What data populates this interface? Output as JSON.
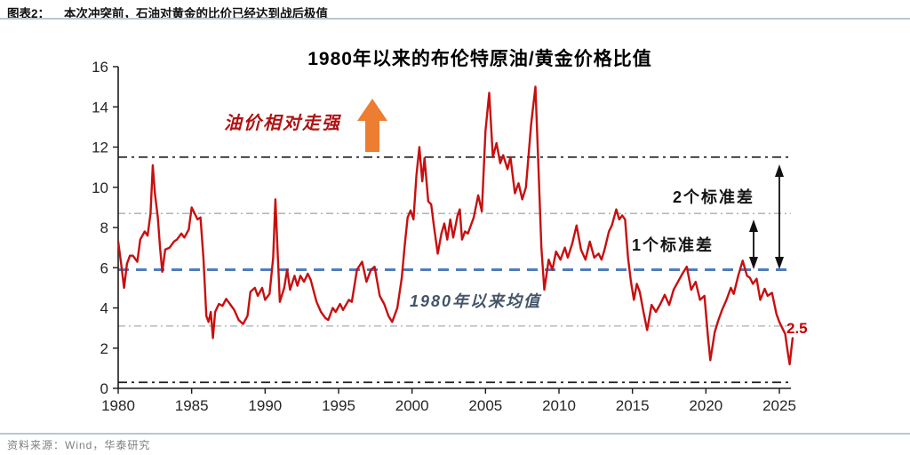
{
  "header": {
    "tag": "图表2：",
    "title": "本次冲突前，石油对黄金的比价已经达到战后极值"
  },
  "footer": {
    "source": "资料来源：Wind，华泰研究"
  },
  "chart_data": {
    "type": "line",
    "title": "1980年以来的布伦特原油/黄金价格比值",
    "series_name": "布伦特原油/黄金价格比值",
    "line_color": "#c80f0f",
    "xlim": [
      1980,
      2026.3
    ],
    "ylim": [
      0,
      16
    ],
    "x_ticks": [
      1980,
      1985,
      1990,
      1995,
      2000,
      2005,
      2010,
      2015,
      2020,
      2025
    ],
    "y_ticks": [
      0,
      2,
      4,
      6,
      8,
      10,
      12,
      14,
      16
    ],
    "grid": false,
    "legend": "none",
    "reference_lines": [
      {
        "name": "mean_plus_2std",
        "value": 11.5,
        "color": "#1f1f1f",
        "style": "dashdot_major"
      },
      {
        "name": "mean_plus_1std",
        "value": 8.7,
        "color": "#a6acb5",
        "style": "dashdot_minor"
      },
      {
        "name": "mean_since_1980",
        "value": 5.9,
        "color": "#4f7cbe",
        "style": "dashed"
      },
      {
        "name": "mean_minus_1std",
        "value": 3.1,
        "color": "#a6acb5",
        "style": "dashdot_minor"
      },
      {
        "name": "mean_minus_2std",
        "value": 0.3,
        "color": "#1f1f1f",
        "style": "dashdot_major"
      }
    ],
    "annotations": {
      "strength": "油价相对走强",
      "two_std": "2个标准差",
      "one_std": "1个标准差",
      "mean": "1980年以来均值",
      "last_value": "2.5"
    },
    "accent_colors": {
      "arrow_orange": "#ed7d31",
      "annotation_red": "#b01212",
      "mean_text_blue": "#44546a"
    },
    "points": [
      [
        1980.0,
        7.3
      ],
      [
        1980.2,
        6.2
      ],
      [
        1980.4,
        5.0
      ],
      [
        1980.6,
        6.2
      ],
      [
        1980.8,
        6.6
      ],
      [
        1981.0,
        6.6
      ],
      [
        1981.3,
        6.3
      ],
      [
        1981.5,
        7.4
      ],
      [
        1981.8,
        7.8
      ],
      [
        1982.0,
        7.6
      ],
      [
        1982.2,
        8.7
      ],
      [
        1982.35,
        11.1
      ],
      [
        1982.5,
        9.7
      ],
      [
        1982.7,
        8.5
      ],
      [
        1982.85,
        7.0
      ],
      [
        1983.0,
        5.8
      ],
      [
        1983.2,
        6.9
      ],
      [
        1983.5,
        7.0
      ],
      [
        1983.8,
        7.3
      ],
      [
        1984.0,
        7.4
      ],
      [
        1984.3,
        7.7
      ],
      [
        1984.5,
        7.5
      ],
      [
        1984.8,
        7.9
      ],
      [
        1985.0,
        9.0
      ],
      [
        1985.2,
        8.7
      ],
      [
        1985.4,
        8.4
      ],
      [
        1985.6,
        8.5
      ],
      [
        1985.8,
        6.5
      ],
      [
        1986.0,
        3.6
      ],
      [
        1986.15,
        3.3
      ],
      [
        1986.3,
        3.8
      ],
      [
        1986.45,
        2.5
      ],
      [
        1986.6,
        3.8
      ],
      [
        1986.85,
        4.2
      ],
      [
        1987.1,
        4.1
      ],
      [
        1987.35,
        4.45
      ],
      [
        1987.6,
        4.2
      ],
      [
        1987.9,
        3.9
      ],
      [
        1988.2,
        3.4
      ],
      [
        1988.5,
        3.2
      ],
      [
        1988.8,
        3.6
      ],
      [
        1989.0,
        4.8
      ],
      [
        1989.3,
        5.0
      ],
      [
        1989.5,
        4.6
      ],
      [
        1989.8,
        5.0
      ],
      [
        1990.0,
        4.4
      ],
      [
        1990.3,
        4.7
      ],
      [
        1990.55,
        6.5
      ],
      [
        1990.7,
        9.4
      ],
      [
        1990.85,
        6.8
      ],
      [
        1991.0,
        4.3
      ],
      [
        1991.3,
        5.0
      ],
      [
        1991.5,
        5.9
      ],
      [
        1991.7,
        4.9
      ],
      [
        1992.0,
        5.6
      ],
      [
        1992.2,
        5.1
      ],
      [
        1992.4,
        5.6
      ],
      [
        1992.65,
        5.3
      ],
      [
        1992.9,
        5.7
      ],
      [
        1993.1,
        5.4
      ],
      [
        1993.5,
        4.3
      ],
      [
        1993.8,
        3.8
      ],
      [
        1994.1,
        3.5
      ],
      [
        1994.3,
        3.4
      ],
      [
        1994.6,
        4.0
      ],
      [
        1994.8,
        3.8
      ],
      [
        1995.1,
        4.2
      ],
      [
        1995.3,
        3.9
      ],
      [
        1995.7,
        4.4
      ],
      [
        1995.9,
        4.3
      ],
      [
        1996.25,
        5.9
      ],
      [
        1996.6,
        6.3
      ],
      [
        1996.9,
        5.3
      ],
      [
        1997.2,
        5.9
      ],
      [
        1997.45,
        6.05
      ],
      [
        1997.8,
        4.6
      ],
      [
        1998.1,
        4.2
      ],
      [
        1998.4,
        3.6
      ],
      [
        1998.65,
        3.3
      ],
      [
        1999.0,
        4.0
      ],
      [
        1999.3,
        5.5
      ],
      [
        1999.5,
        7.1
      ],
      [
        1999.7,
        8.5
      ],
      [
        1999.9,
        8.85
      ],
      [
        2000.1,
        8.4
      ],
      [
        2000.3,
        10.6
      ],
      [
        2000.5,
        12.0
      ],
      [
        2000.7,
        10.3
      ],
      [
        2000.85,
        11.45
      ],
      [
        2001.1,
        9.3
      ],
      [
        2001.3,
        9.15
      ],
      [
        2001.5,
        8.0
      ],
      [
        2001.75,
        6.7
      ],
      [
        2002.0,
        7.7
      ],
      [
        2002.2,
        8.2
      ],
      [
        2002.4,
        7.4
      ],
      [
        2002.6,
        8.4
      ],
      [
        2002.8,
        7.5
      ],
      [
        2003.1,
        8.6
      ],
      [
        2003.25,
        8.9
      ],
      [
        2003.4,
        7.4
      ],
      [
        2003.6,
        7.8
      ],
      [
        2003.8,
        7.7
      ],
      [
        2004.2,
        8.5
      ],
      [
        2004.5,
        9.6
      ],
      [
        2004.75,
        8.8
      ],
      [
        2005.0,
        12.8
      ],
      [
        2005.25,
        14.7
      ],
      [
        2005.5,
        11.5
      ],
      [
        2005.75,
        12.2
      ],
      [
        2006.0,
        11.2
      ],
      [
        2006.2,
        11.6
      ],
      [
        2006.5,
        10.9
      ],
      [
        2006.7,
        11.5
      ],
      [
        2007.0,
        9.7
      ],
      [
        2007.25,
        10.2
      ],
      [
        2007.5,
        9.4
      ],
      [
        2007.75,
        10.0
      ],
      [
        2008.1,
        13.1
      ],
      [
        2008.4,
        15.0
      ],
      [
        2008.6,
        11.0
      ],
      [
        2008.8,
        7.0
      ],
      [
        2009.0,
        4.9
      ],
      [
        2009.3,
        6.4
      ],
      [
        2009.55,
        5.9
      ],
      [
        2009.8,
        6.8
      ],
      [
        2010.1,
        6.4
      ],
      [
        2010.4,
        7.0
      ],
      [
        2010.6,
        6.5
      ],
      [
        2010.9,
        7.2
      ],
      [
        2011.2,
        8.1
      ],
      [
        2011.5,
        6.9
      ],
      [
        2011.8,
        6.4
      ],
      [
        2012.1,
        7.3
      ],
      [
        2012.4,
        6.5
      ],
      [
        2012.7,
        6.7
      ],
      [
        2012.9,
        6.4
      ],
      [
        2013.1,
        6.9
      ],
      [
        2013.4,
        7.8
      ],
      [
        2013.6,
        8.1
      ],
      [
        2013.9,
        8.9
      ],
      [
        2014.1,
        8.4
      ],
      [
        2014.3,
        8.6
      ],
      [
        2014.5,
        8.4
      ],
      [
        2014.7,
        6.5
      ],
      [
        2014.9,
        5.3
      ],
      [
        2015.1,
        4.4
      ],
      [
        2015.3,
        5.2
      ],
      [
        2015.5,
        4.8
      ],
      [
        2015.75,
        3.8
      ],
      [
        2016.0,
        2.9
      ],
      [
        2016.3,
        4.15
      ],
      [
        2016.6,
        3.8
      ],
      [
        2016.9,
        4.2
      ],
      [
        2017.2,
        4.65
      ],
      [
        2017.5,
        4.15
      ],
      [
        2017.8,
        4.9
      ],
      [
        2018.1,
        5.3
      ],
      [
        2018.4,
        5.7
      ],
      [
        2018.7,
        6.05
      ],
      [
        2019.0,
        4.9
      ],
      [
        2019.3,
        5.3
      ],
      [
        2019.6,
        4.4
      ],
      [
        2019.9,
        4.6
      ],
      [
        2020.15,
        2.5
      ],
      [
        2020.3,
        1.4
      ],
      [
        2020.6,
        2.8
      ],
      [
        2020.85,
        3.4
      ],
      [
        2021.1,
        3.9
      ],
      [
        2021.4,
        4.4
      ],
      [
        2021.7,
        5.0
      ],
      [
        2021.9,
        4.7
      ],
      [
        2022.2,
        5.6
      ],
      [
        2022.5,
        6.35
      ],
      [
        2022.8,
        5.6
      ],
      [
        2023.0,
        5.5
      ],
      [
        2023.2,
        5.2
      ],
      [
        2023.45,
        5.45
      ],
      [
        2023.7,
        4.4
      ],
      [
        2024.0,
        4.95
      ],
      [
        2024.2,
        4.6
      ],
      [
        2024.5,
        4.75
      ],
      [
        2024.8,
        3.7
      ],
      [
        2025.0,
        3.3
      ],
      [
        2025.2,
        3.0
      ],
      [
        2025.4,
        2.7
      ],
      [
        2025.55,
        1.9
      ],
      [
        2025.7,
        1.2
      ],
      [
        2025.9,
        2.5
      ]
    ]
  }
}
